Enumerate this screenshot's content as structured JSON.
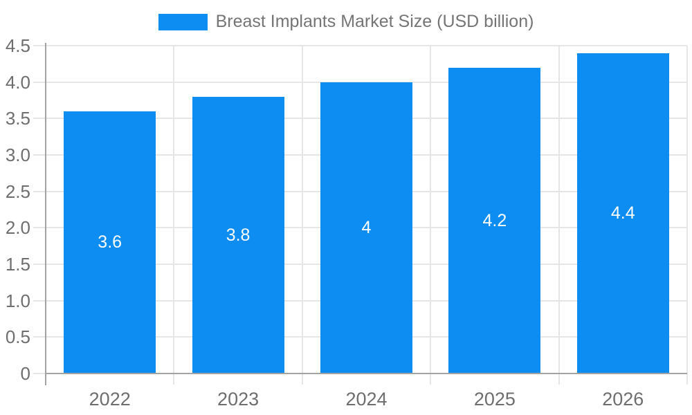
{
  "legend": {
    "label": "Breast Implants Market Size (USD billion)"
  },
  "colors": {
    "bar": "#0d8df2",
    "grid": "#e6e6e6",
    "axis": "#a3a3a3",
    "axis_text": "#6e6e6e",
    "legend_text": "#757575",
    "value_label": "#ffffff",
    "background": "#ffffff"
  },
  "chart_data": {
    "type": "bar",
    "title": "Breast Implants Market Size (USD billion)",
    "series": [
      {
        "name": "Breast Implants Market Size (USD billion)",
        "values": [
          3.6,
          3.8,
          4,
          4.2,
          4.4
        ]
      }
    ],
    "categories": [
      "2022",
      "2023",
      "2024",
      "2025",
      "2026"
    ],
    "value_labels": [
      "3.6",
      "3.8",
      "4",
      "4.2",
      "4.4"
    ],
    "xlabel": "",
    "ylabel": "",
    "ylim": [
      0,
      4.5
    ],
    "ytick_step": 0.5,
    "ytick_labels": [
      "0",
      "0.5",
      "1.0",
      "1.5",
      "2.0",
      "2.5",
      "3.0",
      "3.5",
      "4.0",
      "4.5"
    ],
    "grid": true,
    "legend_position": "top",
    "value_label_position": "center"
  }
}
